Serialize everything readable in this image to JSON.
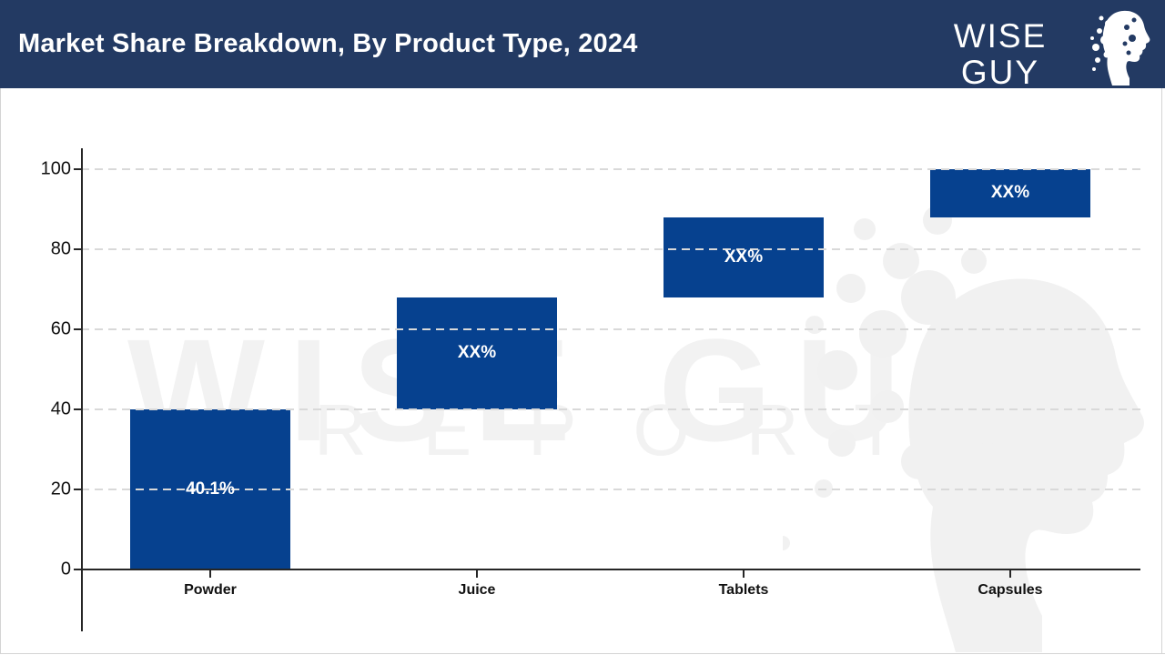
{
  "header": {
    "title": "Market Share Breakdown, By Product Type, 2024"
  },
  "logo": {
    "line1": "WISE GUY",
    "line2": "REPORTS"
  },
  "watermark": {
    "line1": "WISE GUY",
    "line2": "REPORTS"
  },
  "chart_data": {
    "type": "bar",
    "subtype": "waterfall-floating-bars",
    "title": "Market Share Breakdown, By Product Type, 2024",
    "categories": [
      "Powder",
      "Juice",
      "Tablets",
      "Capsules"
    ],
    "bars": [
      {
        "category": "Powder",
        "label": "40.1%",
        "start": 0,
        "end": 40.1
      },
      {
        "category": "Juice",
        "label": "XX%",
        "start": 40.1,
        "end": 68
      },
      {
        "category": "Tablets",
        "label": "XX%",
        "start": 68,
        "end": 88
      },
      {
        "category": "Capsules",
        "label": "XX%",
        "start": 88,
        "end": 100
      }
    ],
    "yticks": [
      0,
      20,
      40,
      60,
      80,
      100
    ],
    "ylim": [
      0,
      105
    ],
    "xlabel": "",
    "ylabel": "",
    "grid": "horizontal-dashed",
    "legend": "none",
    "bar_color": "#06418f",
    "bar_label_color": "#ffffff"
  },
  "colors": {
    "header_bg": "#233a63",
    "bar": "#06418f",
    "axis": "#262626",
    "gridline": "#d9d9d9",
    "watermark": "#f2f2f2"
  }
}
